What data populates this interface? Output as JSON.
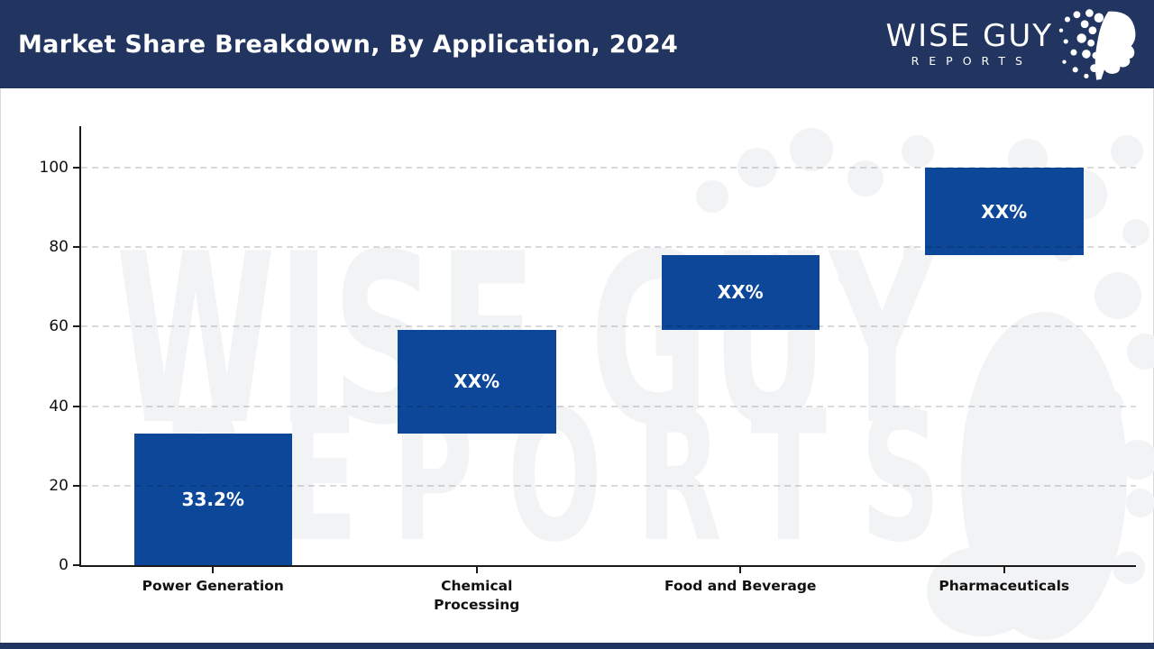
{
  "header": {
    "title": "Market Share Breakdown, By Application, 2024",
    "logo": {
      "name_top": "WISE GUY",
      "name_bottom": "REPORTS"
    }
  },
  "watermark": {
    "line1": "WISE GUY",
    "line2": "REPORTS"
  },
  "colors": {
    "header_bg": "#213560",
    "footer_bg": "#213560",
    "bar": "#0d4799",
    "bar_label": "#ffffff",
    "watermark": "#f2f3f5"
  },
  "chart_data": {
    "type": "bar",
    "variant": "waterfall-stacked-percentage",
    "title": "Market Share Breakdown, By Application, 2024",
    "categories": [
      "Power Generation",
      "Chemical Processing",
      "Food and Beverage",
      "Pharmaceuticals"
    ],
    "series": [
      {
        "name": "Market share (%)",
        "segments": [
          {
            "category": "Power Generation",
            "start": 0,
            "end": 33.2,
            "label": "33.2%"
          },
          {
            "category": "Chemical Processing",
            "start": 33.2,
            "end": 59.3,
            "label": "XX%"
          },
          {
            "category": "Food and Beverage",
            "start": 59.3,
            "end": 77.9,
            "label": "XX%"
          },
          {
            "category": "Pharmaceuticals",
            "start": 77.9,
            "end": 100,
            "label": "XX%"
          }
        ]
      }
    ],
    "xlabel": "",
    "ylabel": "",
    "ylim": [
      0,
      100
    ],
    "yticks": [
      0,
      20,
      40,
      60,
      80,
      100
    ],
    "grid": "horizontal-dashed",
    "legend": "none"
  }
}
